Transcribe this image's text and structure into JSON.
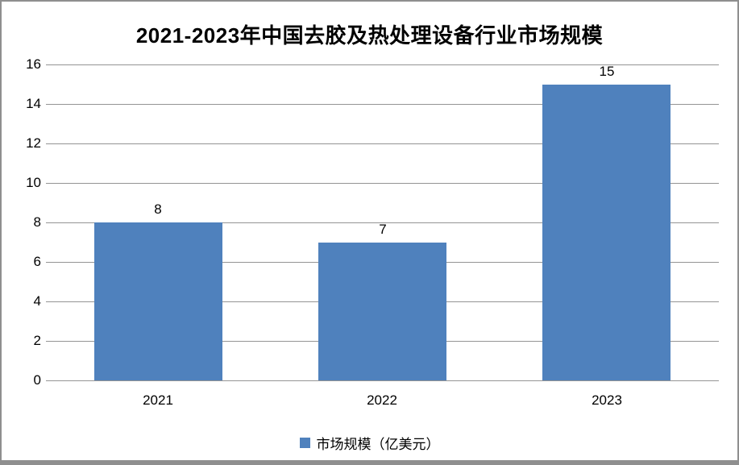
{
  "chart_data": {
    "type": "bar",
    "title": "2021-2023年中国去胶及热处理设备行业市场规模",
    "categories": [
      "2021",
      "2022",
      "2023"
    ],
    "series": [
      {
        "name": "市场规模（亿美元）",
        "values": [
          8,
          7,
          15
        ]
      }
    ],
    "data_labels": [
      "8",
      "7",
      "15"
    ],
    "xlabel": "",
    "ylabel": "",
    "ylim": [
      0,
      16
    ],
    "yticks": [
      0,
      2,
      4,
      6,
      8,
      10,
      12,
      14,
      16
    ],
    "grid": "horizontal gridlines on",
    "legend_position": "bottom-center",
    "colors": {
      "bar": "#4F81BD",
      "gridline": "#949494",
      "frame_border": "#8F8F8F",
      "text": "#000000",
      "background": "#FFFFFF"
    }
  }
}
